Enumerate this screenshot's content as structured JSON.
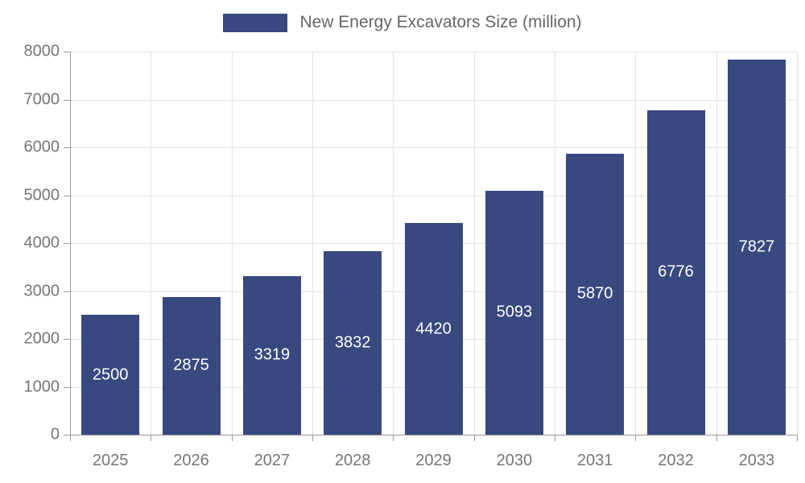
{
  "chart_data": {
    "type": "bar",
    "title": "New Energy Excavators Size (million)",
    "categories": [
      "2025",
      "2026",
      "2027",
      "2028",
      "2029",
      "2030",
      "2031",
      "2032",
      "2033"
    ],
    "values": [
      2500,
      2875,
      3319,
      3832,
      4420,
      5093,
      5870,
      6776,
      7827
    ],
    "series_name": "New Energy Excavators Size (million)",
    "xlabel": "",
    "ylabel": "",
    "ylim": [
      0,
      8000
    ],
    "ytick_step": 1000,
    "ytick_labels": [
      "0",
      "1000",
      "2000",
      "3000",
      "4000",
      "5000",
      "6000",
      "7000",
      "8000"
    ],
    "grid": true,
    "grid_directions": "horizontal-and-vertical",
    "legend_position": "top-center",
    "value_labels_inside_bars": true,
    "colors": {
      "bar": "#38497F",
      "value_label": "#FFFFFF",
      "grid": "#E2E2E2",
      "axis": "#999999",
      "tick_label": "#757575",
      "legend_text": "#666666",
      "background": "#FFFFFF"
    }
  }
}
